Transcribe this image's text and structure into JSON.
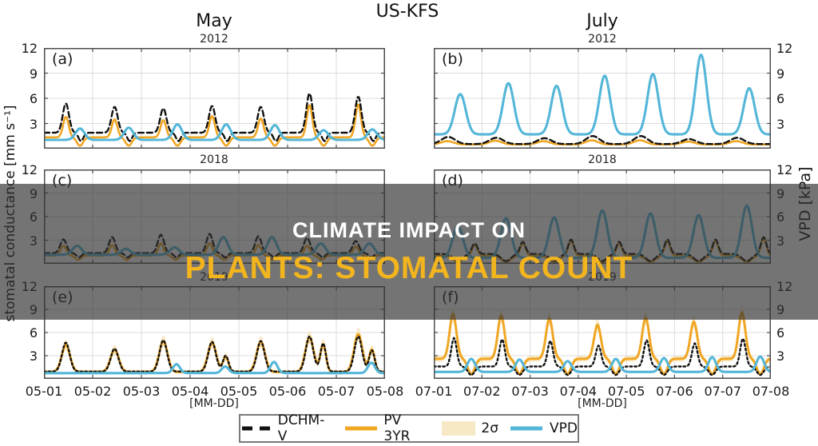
{
  "title": "US-KFS",
  "columns": [
    {
      "label": "May"
    },
    {
      "label": "July"
    }
  ],
  "ylabel_left": "stomatal conductance [mm s⁻¹]",
  "ylabel_right": "VPD [kPa]",
  "xlabel": "[MM-DD]",
  "yticks": [
    12,
    9,
    6,
    3
  ],
  "banner": {
    "line1": "CLIMATE IMPACT ON",
    "line2": "PLANTS: STOMATAL COUNT"
  },
  "legend": [
    {
      "label": "DCHM-V",
      "swatch": "dash",
      "color": "dchm"
    },
    {
      "label": "PV 3YR",
      "swatch": "line",
      "color": "pv"
    },
    {
      "label": "2σ",
      "swatch": "band",
      "color": "band"
    },
    {
      "label": "VPD",
      "swatch": "line",
      "color": "vpd"
    }
  ],
  "colors": {
    "dchm": "#111111",
    "pv": "#f0a622",
    "band": "#f8e9c6",
    "vpd": "#54b6d8",
    "banner_text2": "#f3b51e",
    "frame": "#4d4d4d",
    "grid": "#dcdcdc"
  },
  "chart_data": [
    {
      "key": "a",
      "panel": "(a)",
      "month": "May",
      "year": "2012",
      "type": "line",
      "ylim": [
        0,
        12
      ],
      "x_days": 7,
      "grid": true,
      "series": [
        {
          "name": "PV 3YR",
          "color": "#f0a622",
          "style": "solid",
          "baseline": 1.35,
          "daily_peaks": [
            3.8,
            3.5,
            3.4,
            3.9,
            3.6,
            5.2,
            5.3
          ],
          "peak_time": 0.45,
          "peak_width": 0.08,
          "dip_value": 0.35,
          "dip_time": 0.74,
          "dip_width": 0.09
        },
        {
          "name": "DCHM-V",
          "color": "#111111",
          "style": "dashed",
          "baseline": 1.9,
          "daily_peaks": [
            5.4,
            5.0,
            4.8,
            5.1,
            5.0,
            6.6,
            6.2
          ],
          "peak_time": 0.45,
          "peak_width": 0.09,
          "dip_value": 0.9,
          "dip_time": 0.76,
          "dip_width": 0.07
        },
        {
          "name": "VPD",
          "color": "#54b6d8",
          "style": "solid",
          "baseline": 1.05,
          "daily_peaks": [
            2.4,
            2.5,
            2.9,
            2.9,
            2.8,
            2.2,
            2.3
          ],
          "peak_time": 0.74,
          "peak_width": 0.13
        }
      ]
    },
    {
      "key": "b",
      "panel": "(b)",
      "month": "July",
      "year": "2012",
      "type": "line",
      "ylim": [
        0,
        12
      ],
      "x_days": 7,
      "grid": true,
      "series": [
        {
          "name": "PV 3YR",
          "color": "#f0a622",
          "style": "solid",
          "baseline": 0.5,
          "daily_peaks": [
            0.9,
            0.95,
            0.9,
            1.0,
            1.0,
            0.85,
            0.9
          ],
          "peak_time": 0.28,
          "peak_width": 0.18
        },
        {
          "name": "DCHM-V",
          "color": "#111111",
          "style": "dashed",
          "baseline": 0.55,
          "daily_peaks": [
            1.4,
            1.3,
            1.25,
            1.5,
            1.5,
            1.15,
            1.3
          ],
          "peak_time": 0.3,
          "peak_width": 0.2
        },
        {
          "name": "VPD",
          "color": "#54b6d8",
          "style": "solid",
          "baseline": 1.7,
          "daily_peaks": [
            6.5,
            7.8,
            7.5,
            8.7,
            8.9,
            11.2,
            7.2
          ],
          "peak_time": 0.55,
          "peak_width": 0.16
        }
      ]
    },
    {
      "key": "c",
      "panel": "(c)",
      "month": "May",
      "year": "2018",
      "type": "line",
      "ylim": [
        0,
        12
      ],
      "x_days": 7,
      "grid": true,
      "series": [
        {
          "name": "PV 3YR",
          "color": "#f0a622",
          "style": "solid",
          "baseline": 1.05,
          "daily_peaks": [
            2.3,
            2.4,
            2.6,
            2.6,
            2.4,
            2.3,
            2.2
          ],
          "peak_time": 0.4,
          "peak_width": 0.08,
          "dip_value": 0.5,
          "dip_time": 0.7,
          "dip_width": 0.08
        },
        {
          "name": "DCHM-V",
          "color": "#111111",
          "style": "dashed",
          "baseline": 1.35,
          "daily_peaks": [
            3.1,
            3.4,
            3.7,
            3.8,
            3.5,
            3.3,
            2.9
          ],
          "peak_time": 0.4,
          "peak_width": 0.09,
          "dip_value": 0.8,
          "dip_time": 0.72,
          "dip_width": 0.07
        },
        {
          "name": "VPD",
          "color": "#54b6d8",
          "style": "solid",
          "baseline": 1.15,
          "daily_peaks": [
            2.3,
            1.9,
            2.1,
            3.4,
            3.4,
            2.6,
            2.6
          ],
          "peak_time": 0.68,
          "peak_width": 0.13
        }
      ]
    },
    {
      "key": "d",
      "panel": "(d)",
      "month": "July",
      "year": "2018",
      "type": "line",
      "ylim": [
        0,
        12
      ],
      "x_days": 7,
      "grid": true,
      "series": [
        {
          "name": "PV 3YR",
          "color": "#f0a622",
          "style": "solid",
          "baseline": 1.0,
          "daily_peaks": [
            2.4,
            2.6,
            2.9,
            2.6,
            2.9,
            2.9,
            3.2
          ],
          "peak_time": 0.85,
          "peak_width": 0.08,
          "dip_value": 0.25,
          "dip_time": 0.5,
          "dip_width": 0.14
        },
        {
          "name": "DCHM-V",
          "color": "#111111",
          "style": "dashed",
          "baseline": 1.25,
          "daily_peaks": [
            2.6,
            2.8,
            3.1,
            2.8,
            3.1,
            3.1,
            3.4
          ],
          "peak_time": 0.85,
          "peak_width": 0.08,
          "dip_value": 0.35,
          "dip_time": 0.5,
          "dip_width": 0.14
        },
        {
          "name": "VPD",
          "color": "#54b6d8",
          "style": "solid",
          "baseline": 0.75,
          "daily_peaks": [
            4.8,
            5.8,
            5.9,
            6.8,
            6.4,
            6.2,
            7.4
          ],
          "peak_time": 0.5,
          "peak_width": 0.15
        }
      ]
    },
    {
      "key": "e",
      "panel": "(e)",
      "month": "May",
      "year": "2019",
      "type": "line",
      "ylim": [
        0,
        12
      ],
      "x_days": 7,
      "grid": true,
      "xtick_labels": [
        "05-01",
        "05-02",
        "05-03",
        "05-04",
        "05-05",
        "05-06",
        "05-07",
        "05-08"
      ],
      "uncertainty_band": {
        "label": "2σ",
        "around": "PV 3YR",
        "scale": 0.13,
        "min": 0.12
      },
      "series": [
        {
          "name": "PV 3YR",
          "color": "#f0a622",
          "style": "solid",
          "baseline": 0.9,
          "daily_peaks": [
            4.4,
            3.8,
            4.9,
            4.7,
            4.8,
            5.4,
            5.8
          ],
          "peak_time": 0.45,
          "peak_width": 0.12,
          "daily_peaks2": [
            0,
            0,
            0,
            2.9,
            0,
            4.5,
            3.8
          ],
          "peak_time2": 0.73,
          "peak_width2": 0.08
        },
        {
          "name": "DCHM-V",
          "color": "#111111",
          "style": "dashed",
          "baseline": 0.95,
          "daily_peaks": [
            4.7,
            3.9,
            5.0,
            4.8,
            4.9,
            5.5,
            5.5
          ],
          "peak_time": 0.45,
          "peak_width": 0.11,
          "daily_peaks2": [
            0,
            0,
            0,
            3.0,
            0,
            4.6,
            3.7
          ],
          "peak_time2": 0.73,
          "peak_width2": 0.08
        },
        {
          "name": "VPD",
          "color": "#54b6d8",
          "style": "solid",
          "baseline": 0.75,
          "daily_peaks": [
            0,
            0,
            1.9,
            1.6,
            2.2,
            0,
            2.1
          ],
          "peak_time": 0.72,
          "peak_width": 0.1
        }
      ]
    },
    {
      "key": "f",
      "panel": "(f)",
      "month": "July",
      "year": "2019",
      "type": "line",
      "ylim": [
        0,
        12
      ],
      "x_days": 7,
      "grid": true,
      "xtick_labels": [
        "07-01",
        "07-02",
        "07-03",
        "07-04",
        "07-05",
        "07-06",
        "07-07",
        "07-08"
      ],
      "uncertainty_band": {
        "label": "2σ",
        "around": "PV 3YR",
        "scale": 0.1,
        "min": 0.1
      },
      "series": [
        {
          "name": "PV 3YR",
          "color": "#f0a622",
          "style": "solid",
          "baseline": 2.6,
          "daily_peaks": [
            8.4,
            8.2,
            7.8,
            7.0,
            7.9,
            7.4,
            8.6
          ],
          "peak_time": 0.4,
          "peak_width": 0.1,
          "dip_value": 0.6,
          "dip_time": 0.78,
          "dip_width": 0.1
        },
        {
          "name": "DCHM-V",
          "color": "#111111",
          "style": "dashed",
          "baseline": 1.6,
          "daily_peaks": [
            5.3,
            5.1,
            4.9,
            4.3,
            5.0,
            4.6,
            5.2
          ],
          "peak_time": 0.42,
          "peak_width": 0.08,
          "dip_value": 0.5,
          "dip_time": 0.78,
          "dip_width": 0.1
        },
        {
          "name": "VPD",
          "color": "#54b6d8",
          "style": "solid",
          "baseline": 0.9,
          "daily_peaks": [
            2.6,
            2.5,
            2.3,
            2.6,
            2.7,
            2.8,
            2.9
          ],
          "peak_time": 0.78,
          "peak_width": 0.11
        }
      ]
    }
  ]
}
